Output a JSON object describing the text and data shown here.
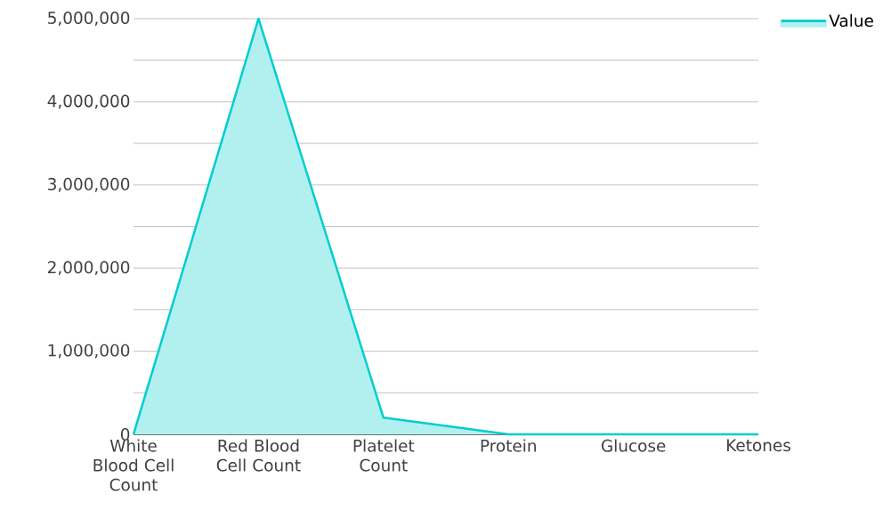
{
  "chart_data": {
    "type": "area",
    "categories": [
      "White Blood Cell Count",
      "Red Blood Cell Count",
      "Platelet Count",
      "Protein",
      "Glucose",
      "Ketones"
    ],
    "series": [
      {
        "name": "Value",
        "color": "#00cece",
        "values": [
          0,
          5000000,
          200000,
          0,
          0,
          0
        ]
      }
    ],
    "ylim": [
      0,
      5000000
    ],
    "yticks": [
      0,
      {
        "value": 500000,
        "label": null
      },
      {
        "value": 1000000,
        "label": "1,000,000"
      },
      {
        "value": 1500000,
        "label": null
      },
      {
        "value": 2000000,
        "label": "2,000,000"
      },
      {
        "value": 2500000,
        "label": null
      },
      {
        "value": 3000000,
        "label": "3,000,000"
      },
      {
        "value": 3500000,
        "label": null
      },
      {
        "value": 4000000,
        "label": "4,000,000"
      },
      {
        "value": 4500000,
        "label": null
      },
      {
        "value": 5000000,
        "label": "5,000,000"
      }
    ],
    "grid": "y",
    "legend": "top right"
  }
}
